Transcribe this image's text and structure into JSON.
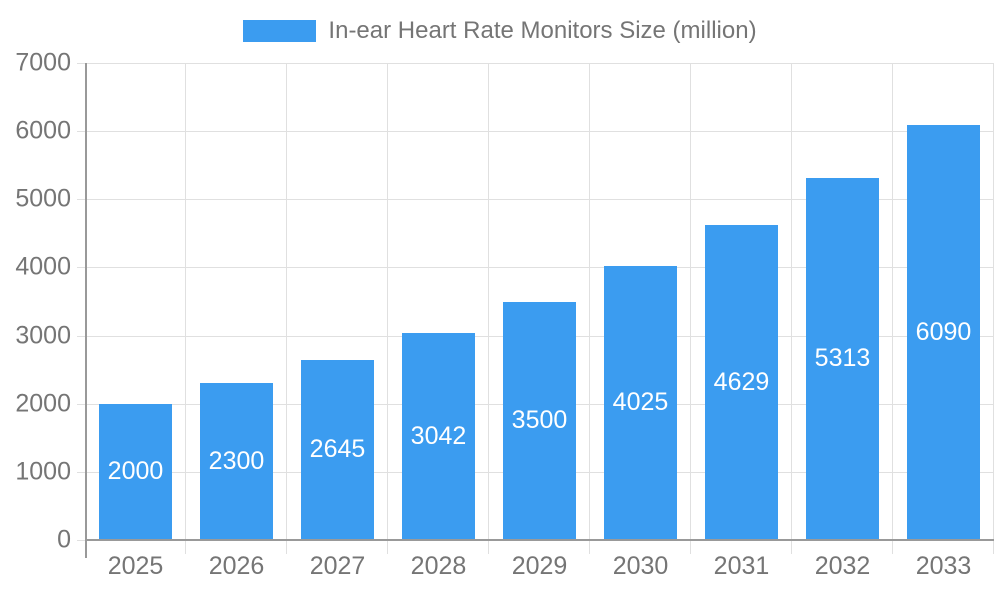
{
  "legend": {
    "label": "In-ear Heart Rate Monitors Size (million)"
  },
  "chart_data": {
    "type": "bar",
    "title": "In-ear Heart Rate Monitors Size (million)",
    "categories": [
      "2025",
      "2026",
      "2027",
      "2028",
      "2029",
      "2030",
      "2031",
      "2032",
      "2033"
    ],
    "values": [
      2000,
      2300,
      2645,
      3042,
      3500,
      4025,
      4629,
      5313,
      6090
    ],
    "xlabel": "",
    "ylabel": "",
    "ylim": [
      0,
      7000
    ],
    "ytick_step": 1000,
    "grid": true,
    "legend_position": "top",
    "value_labels": "inside-center",
    "colors": {
      "bar": "#3B9CF0",
      "value_label": "#FFFFFF",
      "axis_text": "#757575",
      "grid_line": "#E0E0E0",
      "axis_line": "#999999"
    }
  }
}
